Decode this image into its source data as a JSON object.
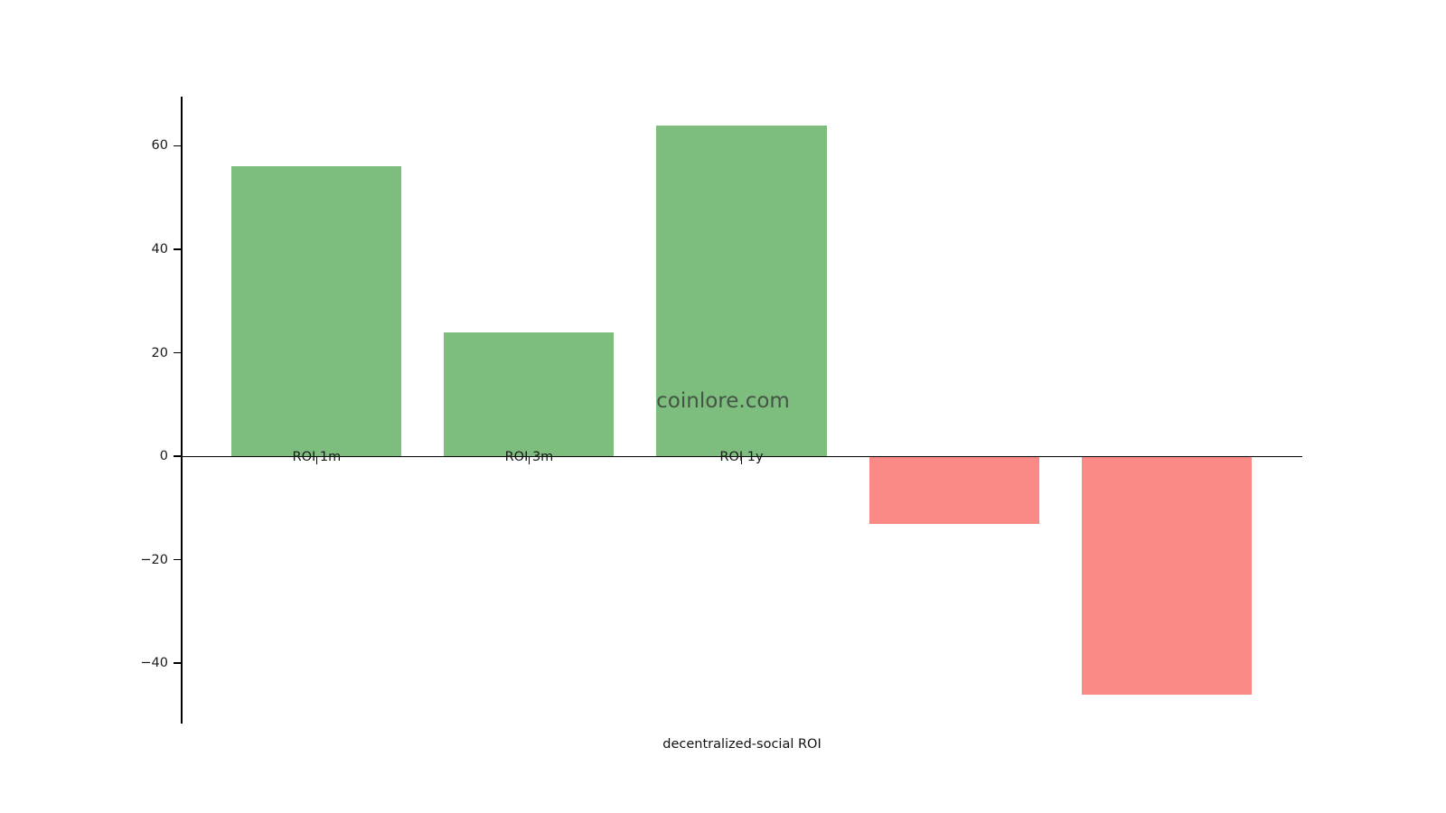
{
  "chart_data": {
    "type": "bar",
    "title": "",
    "xlabel": "decentralized-social ROI",
    "ylabel": "",
    "categories": [
      "ROI 1m",
      "ROI 3m",
      "ROI 1y",
      "",
      ""
    ],
    "values": [
      56,
      24,
      64,
      -13,
      -46
    ],
    "series_note": "green bars = positive ROI, red bars = negative ROI",
    "positive_color": "#7dbe7e",
    "negative_color": "#fb8a86",
    "axis_color": "#000000",
    "y_ticks": [
      -40,
      -20,
      0,
      20,
      40,
      60
    ],
    "ylim": [
      -51.5,
      69.5
    ],
    "grid": false,
    "legend": null,
    "watermark": "coinlore.com"
  },
  "watermark": {
    "text": "coinlore.com",
    "color": "#414b41"
  }
}
